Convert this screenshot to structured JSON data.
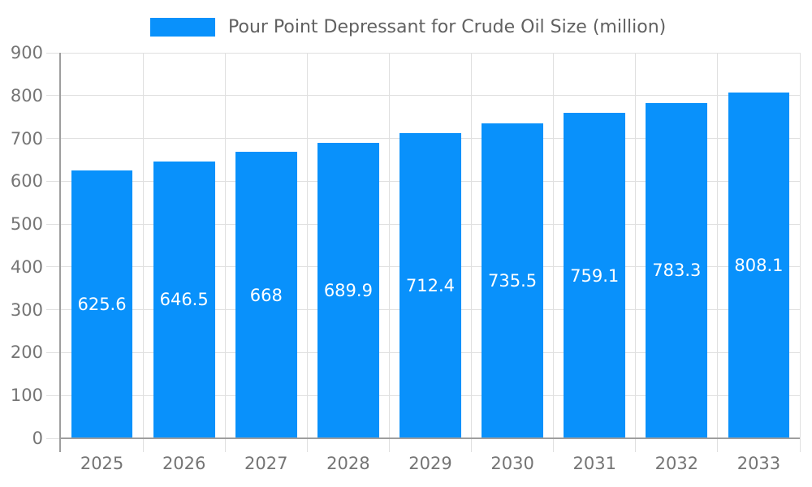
{
  "legend": {
    "label": "Pour Point Depressant for Crude Oil Size (million)"
  },
  "chart_data": {
    "type": "bar",
    "title": "Pour Point Depressant for Crude Oil Size (million)",
    "series_name": "Pour Point Depressant for Crude Oil Size (million)",
    "categories": [
      "2025",
      "2026",
      "2027",
      "2028",
      "2029",
      "2030",
      "2031",
      "2032",
      "2033"
    ],
    "values": [
      625.6,
      646.5,
      668,
      689.9,
      712.4,
      735.5,
      759.1,
      783.3,
      808.1
    ],
    "value_labels": [
      "625.6",
      "646.5",
      "668",
      "689.9",
      "712.4",
      "735.5",
      "759.1",
      "783.3",
      "808.1"
    ],
    "xlabel": "",
    "ylabel": "",
    "ylim": [
      0,
      900
    ],
    "ytick_step": 100,
    "y_tick_labels": [
      "0",
      "100",
      "200",
      "300",
      "400",
      "500",
      "600",
      "700",
      "800",
      "900"
    ],
    "grid": true,
    "legend_position": "top",
    "bar_width_fraction": 0.75
  },
  "colors": {
    "bar": "#0991fb",
    "bar_label": "#ffffff",
    "grid": "#e0e0e0",
    "axis": "#9e9e9e",
    "tick_text": "#757575",
    "legend_text": "#616161",
    "background": "#ffffff"
  }
}
